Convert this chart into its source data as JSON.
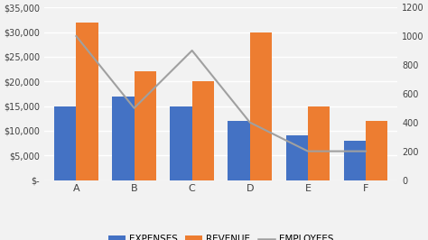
{
  "categories": [
    "A",
    "B",
    "C",
    "D",
    "E",
    "F"
  ],
  "expenses": [
    15000,
    17000,
    15000,
    12000,
    9000,
    8000
  ],
  "revenue": [
    32000,
    22000,
    20000,
    30000,
    15000,
    12000
  ],
  "employees": [
    1000,
    500,
    900,
    400,
    200,
    200
  ],
  "bar_color_expenses": "#4472C4",
  "bar_color_revenue": "#ED7D31",
  "line_color_employees": "#A0A0A0",
  "ylim_primary": [
    0,
    35000
  ],
  "ylim_secondary": [
    0,
    1200
  ],
  "yticks_primary": [
    0,
    5000,
    10000,
    15000,
    20000,
    25000,
    30000,
    35000
  ],
  "yticks_secondary": [
    0,
    200,
    400,
    600,
    800,
    1000,
    1200
  ],
  "background_color": "#F2F2F2",
  "plot_area_color": "#F2F2F2",
  "grid_color": "#FFFFFF",
  "legend_labels": [
    "EXPENSES",
    "REVENUE",
    "EMPLOYEES"
  ],
  "bar_width": 0.38
}
